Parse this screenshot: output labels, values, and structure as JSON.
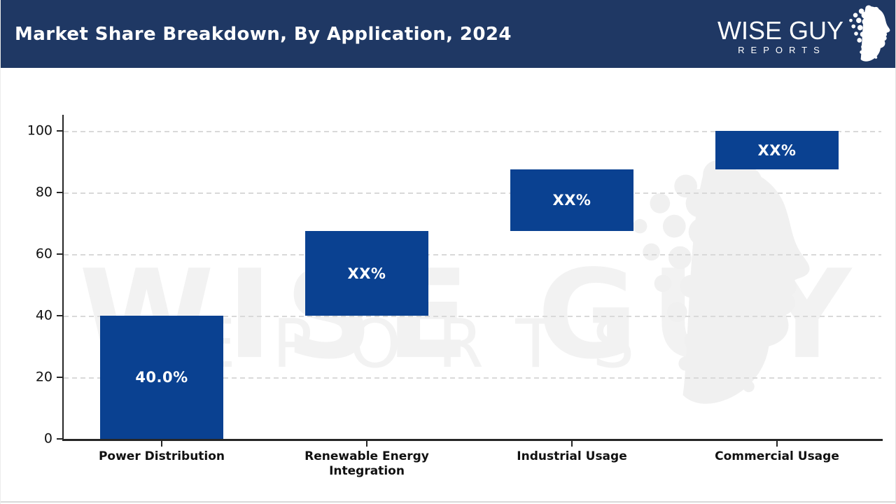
{
  "header": {
    "title": "Market Share Breakdown, By Application, 2024",
    "bg_color": "#1f3864",
    "logo": {
      "wordmark": "WISE GUY",
      "subtitle": "REPORTS"
    }
  },
  "watermark": {
    "wordmark": "WISE GUY",
    "subtitle": "REPORTS"
  },
  "chart_data": {
    "type": "bar",
    "subtype": "waterfall",
    "title": "Market Share Breakdown, By Application, 2024",
    "categories": [
      "Power Distribution",
      "Renewable Energy Integration",
      "Industrial Usage",
      "Commercial Usage"
    ],
    "segments": [
      {
        "category": "Power Distribution",
        "start": 0,
        "end": 40,
        "label": "40.0%"
      },
      {
        "category": "Renewable Energy Integration",
        "start": 40,
        "end": 67.5,
        "label": "XX%"
      },
      {
        "category": "Industrial Usage",
        "start": 67.5,
        "end": 87.5,
        "label": "XX%"
      },
      {
        "category": "Commercial Usage",
        "start": 87.5,
        "end": 100,
        "label": "XX%"
      }
    ],
    "values_increment": [
      40,
      27.5,
      20,
      12.5
    ],
    "values_cumulative_top": [
      40,
      67.5,
      87.5,
      100
    ],
    "y_ticks": [
      0,
      20,
      40,
      60,
      80,
      100
    ],
    "ylim": [
      0,
      105
    ],
    "xlabel": "",
    "ylabel": "",
    "grid": "horizontal-dashed",
    "legend": "none",
    "bar_color": "#0a4191",
    "bar_label_color": "#ffffff",
    "axis_color": "#262626",
    "gridline_color": "#d9d9d9"
  }
}
